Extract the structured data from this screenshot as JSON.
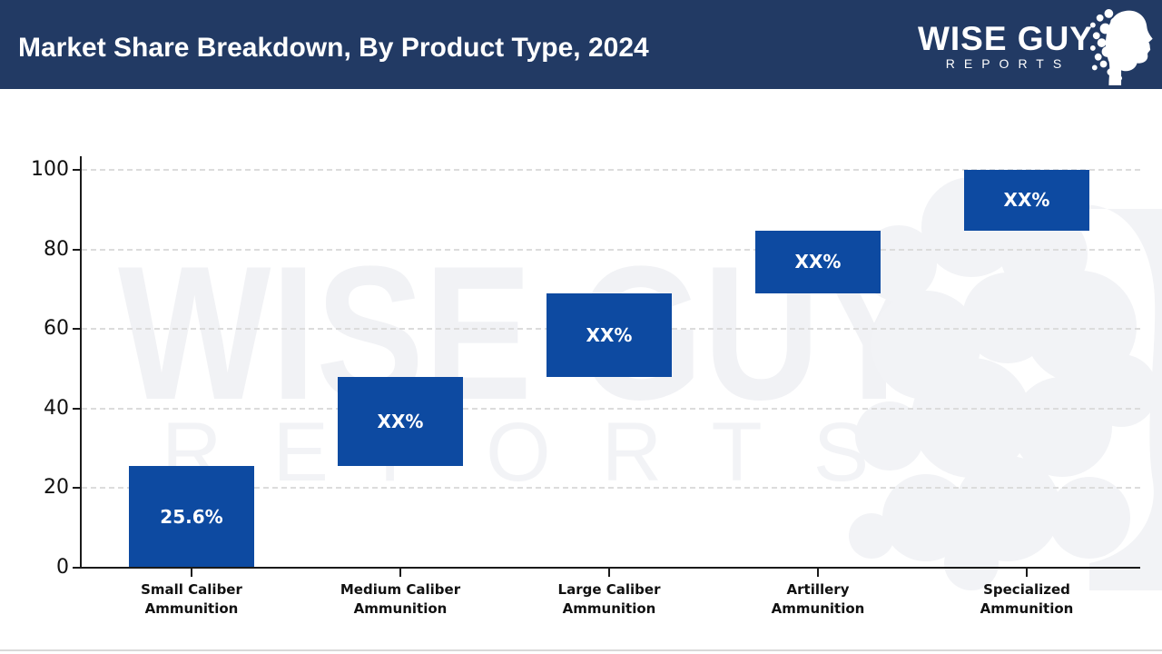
{
  "header": {
    "title": "Market Share Breakdown, By Product Type, 2024",
    "logo": {
      "line1": "WISE GUY",
      "line2": "REPORTS"
    }
  },
  "watermark": {
    "line1": "WISE GUY",
    "line2": "REPORTS"
  },
  "colors": {
    "header_bg": "#223A64",
    "bar": "#0D4AA1",
    "bar_label": "#FFFFFF",
    "axis": "#1A1A1A",
    "grid": "#DCDCDC",
    "watermark": "#F1F2F5"
  },
  "chart_data": {
    "type": "bar",
    "subtype": "waterfall",
    "title": "Market Share Breakdown, By Product Type, 2024",
    "xlabel": "",
    "ylabel": "",
    "ylim": [
      0,
      100
    ],
    "yticks": [
      0,
      20,
      40,
      60,
      80,
      100
    ],
    "grid": "horizontal-dashed",
    "legend": "none",
    "categories": [
      "Small Caliber Ammunition",
      "Medium Caliber Ammunition",
      "Large Caliber Ammunition",
      "Artillery Ammunition",
      "Specialized Ammunition"
    ],
    "segments": [
      {
        "category": "Small Caliber Ammunition",
        "start": 0,
        "end": 25.6,
        "label": "25.6%"
      },
      {
        "category": "Medium Caliber Ammunition",
        "start": 25.6,
        "end": 48,
        "label": "XX%"
      },
      {
        "category": "Large Caliber Ammunition",
        "start": 48,
        "end": 69,
        "label": "XX%"
      },
      {
        "category": "Artillery Ammunition",
        "start": 69,
        "end": 84.8,
        "label": "XX%"
      },
      {
        "category": "Specialized Ammunition",
        "start": 84.8,
        "end": 100,
        "label": "XX%"
      }
    ]
  }
}
